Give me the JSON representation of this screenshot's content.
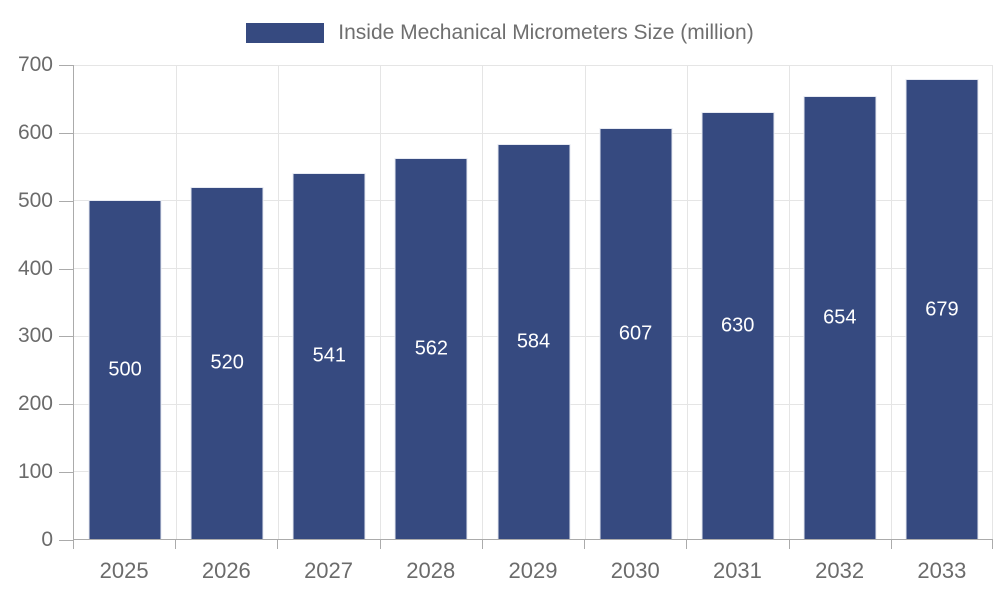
{
  "legend": {
    "label": "Inside Mechanical Micrometers Size (million)"
  },
  "colors": {
    "bar": "#364A80",
    "bar_border": "#e7eaf2",
    "grid": "#e5e5e5",
    "axis": "#ababab",
    "tick_text": "#6b6b6b",
    "legend_text": "#6f6f6f",
    "bar_label": "#ffffff"
  },
  "chart_data": {
    "type": "bar",
    "title": "Inside Mechanical Micrometers Size (million)",
    "categories": [
      "2025",
      "2026",
      "2027",
      "2028",
      "2029",
      "2030",
      "2031",
      "2032",
      "2033"
    ],
    "values": [
      500,
      520,
      541,
      562,
      584,
      607,
      630,
      654,
      679
    ],
    "xlabel": "",
    "ylabel": "",
    "ylim": [
      0,
      700
    ],
    "ytick_step": 100,
    "grid": true,
    "legend_position": "top",
    "bar_labels_inside": true,
    "bar_label_position": "center"
  }
}
